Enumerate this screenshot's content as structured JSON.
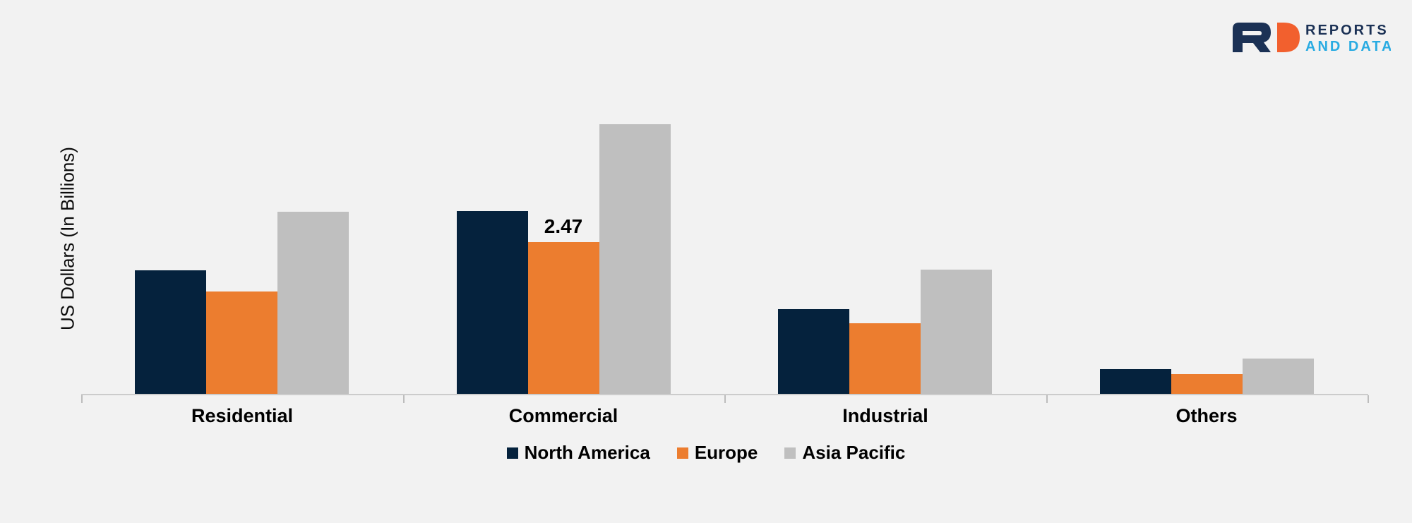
{
  "logo": {
    "line1": "REPORTS",
    "line2": "AND DATA",
    "colors": {
      "navy": "#1b3155",
      "orange": "#f2602e",
      "cyan": "#29abe2"
    }
  },
  "chart_data": {
    "type": "bar",
    "title": "",
    "xlabel": "",
    "ylabel": "US Dollars (In Billions)",
    "categories": [
      "Residential",
      "Commercial",
      "Industrial",
      "Others"
    ],
    "series": [
      {
        "name": "North America",
        "color": "#05223d",
        "values": [
          2.01,
          2.98,
          1.38,
          0.4
        ]
      },
      {
        "name": "Europe",
        "color": "#ec7d2f",
        "values": [
          1.67,
          2.47,
          1.15,
          0.32
        ]
      },
      {
        "name": "Asia Pacific",
        "color": "#bfbfbf",
        "values": [
          2.96,
          4.39,
          2.02,
          0.57
        ]
      }
    ],
    "data_labels": [
      {
        "category": "Commercial",
        "series": "Europe",
        "text": "2.47"
      }
    ],
    "ylim": [
      0,
      4.8
    ],
    "grid": false,
    "legend_position": "bottom",
    "axis_line_color": "#cccccc",
    "background": "#f2f2f2"
  }
}
